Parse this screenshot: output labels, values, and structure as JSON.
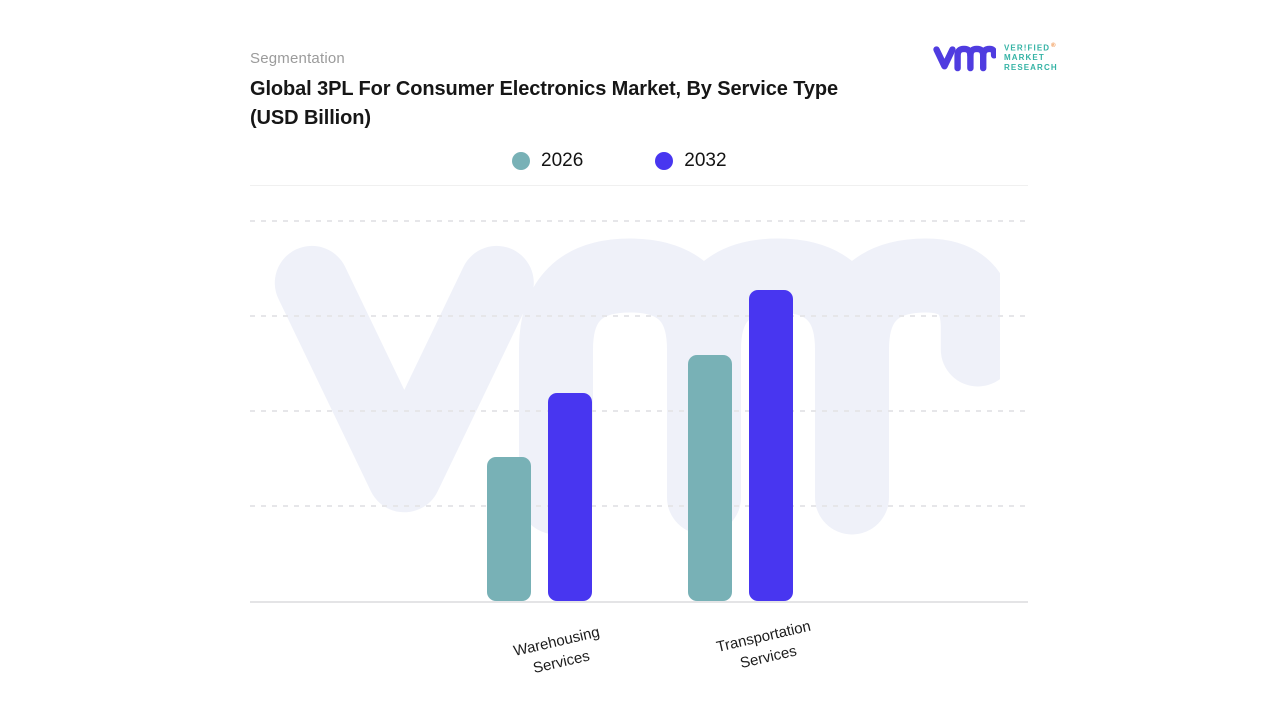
{
  "header": {
    "eyebrow": "Segmentation",
    "title_line1": "Global 3PL For Consumer Electronics Market, By Service Type",
    "title_line2": "(USD Billion)"
  },
  "logo": {
    "glyph": "vmr-monogram",
    "glyph_color": "#4f3ce0",
    "line1": "VER!FIED",
    "line2": "MARKET",
    "line3": "RESEARCH",
    "registered": "®",
    "text_color": "#35b3a5",
    "registered_color": "#f08a3c"
  },
  "watermark": {
    "glyph": "vmr-monogram",
    "color": "#eff1f9"
  },
  "chart_data": {
    "type": "bar",
    "title": "Global 3PL For Consumer Electronics Market, By Service Type (USD Billion)",
    "units": "USD Billion",
    "categories": [
      "Warehousing Services",
      "Transportation Services"
    ],
    "series": [
      {
        "name": "2026",
        "color": "#78b1b6",
        "values": [
          38,
          65
        ]
      },
      {
        "name": "2032",
        "color": "#4836f0",
        "values": [
          55,
          82
        ]
      }
    ],
    "ylim": [
      0,
      100
    ],
    "gridline_values": [
      25,
      50,
      75,
      100
    ],
    "grid_style": "dashed",
    "y_axis_labels_visible": false,
    "legend_position": "top-center",
    "value_scale": "relative percent of plot height; numeric y-axis not shown in image"
  }
}
